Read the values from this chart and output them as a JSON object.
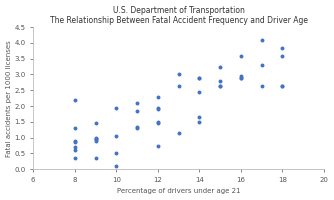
{
  "title_line1": "U.S. Department of Transportation",
  "title_line2": "The Relationship Between Fatal Accident Frequency and Driver Age",
  "xlabel": "Percentage of drivers under age 21",
  "ylabel": "Fatal accidents per 1000 licenses",
  "xlim": [
    6,
    20
  ],
  "ylim": [
    0,
    4.5
  ],
  "xticks": [
    6,
    8,
    10,
    12,
    14,
    16,
    18,
    20
  ],
  "yticks": [
    0,
    0.5,
    1.0,
    1.5,
    2.0,
    2.5,
    3.0,
    3.5,
    4.0,
    4.5
  ],
  "dot_color": "#4472C4",
  "background_color": "#ffffff",
  "x": [
    8,
    8,
    8,
    8,
    8,
    8,
    8,
    9,
    9,
    9,
    9,
    9,
    9,
    10,
    10,
    10,
    10,
    11,
    11,
    11,
    11,
    12,
    12,
    12,
    12,
    12,
    12,
    13,
    13,
    13,
    14,
    14,
    14,
    14,
    14,
    15,
    15,
    15,
    15,
    16,
    16,
    16,
    16,
    17,
    17,
    17,
    18,
    18,
    18,
    18
  ],
  "y": [
    2.2,
    1.3,
    0.9,
    0.85,
    0.7,
    0.6,
    0.35,
    1.45,
    1.0,
    0.95,
    0.95,
    0.9,
    0.35,
    1.95,
    1.05,
    0.5,
    0.1,
    2.1,
    1.85,
    1.35,
    1.3,
    2.3,
    1.95,
    1.9,
    1.45,
    0.75,
    1.5,
    3.0,
    2.65,
    1.15,
    2.9,
    2.9,
    2.45,
    1.65,
    1.5,
    3.25,
    2.8,
    2.65,
    2.65,
    3.6,
    2.95,
    2.9,
    2.9,
    4.1,
    3.3,
    2.65,
    3.85,
    3.6,
    2.65,
    2.65
  ],
  "title_fontsize": 5.5,
  "label_fontsize": 5.0,
  "tick_fontsize": 5.0,
  "dot_size": 8
}
